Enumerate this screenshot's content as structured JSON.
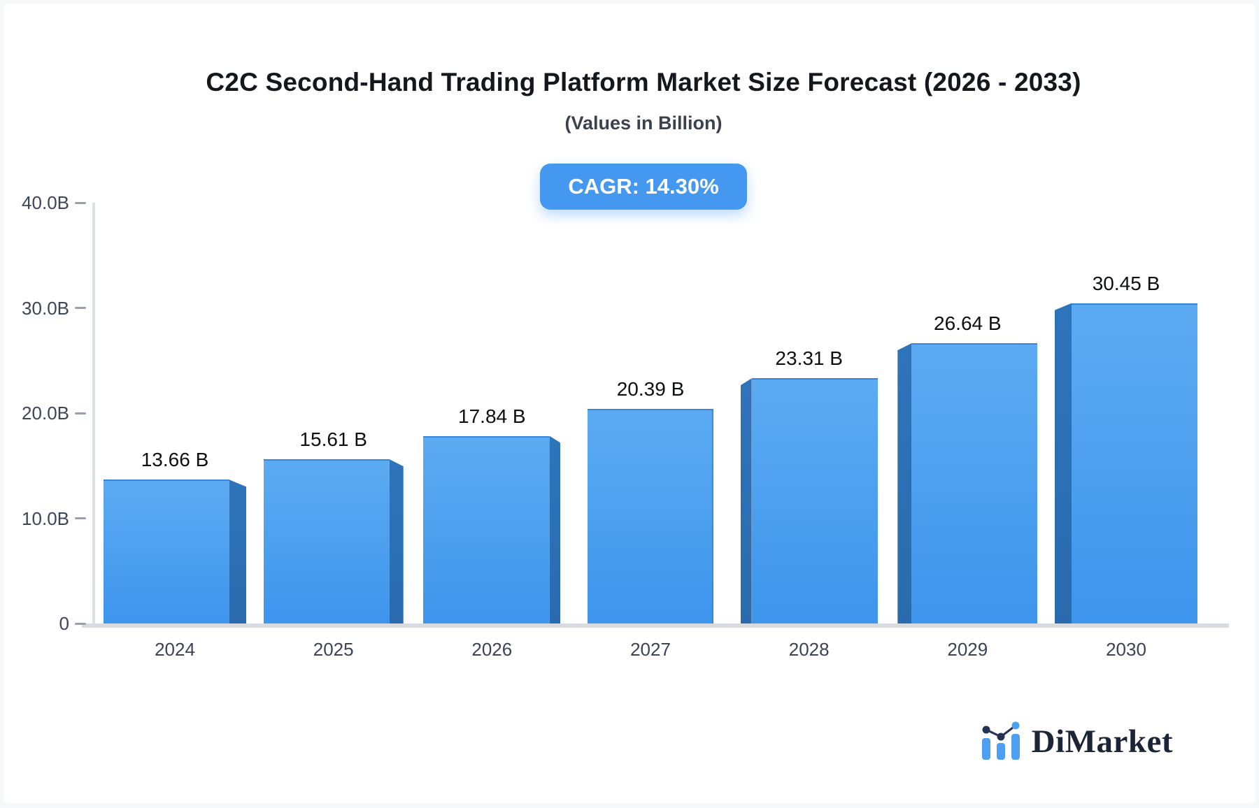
{
  "page": {
    "background": "#f7f8fa",
    "card_background": "#ffffff"
  },
  "header": {
    "title": "C2C Second-Hand Trading Platform Market Size Forecast (2026 - 2033)",
    "subtitle": "(Values in Billion)",
    "badge": "CAGR: 14.30%",
    "badge_color": "#4598EF"
  },
  "chart_data": {
    "type": "bar",
    "title": "C2C Second-Hand Trading Platform Market Size Forecast (2026 - 2033)",
    "subtitle": "(Values in Billion)",
    "annotation": "CAGR: 14.30%",
    "categories": [
      "2024",
      "2025",
      "2026",
      "2027",
      "2028",
      "2029",
      "2030"
    ],
    "values": [
      13.66,
      15.61,
      17.84,
      20.39,
      23.31,
      26.64,
      30.45
    ],
    "bar_labels": [
      "13.66 B",
      "15.61 B",
      "17.84 B",
      "20.39 B",
      "23.31 B",
      "26.64 B",
      "30.45 B"
    ],
    "xlabel": "",
    "ylabel": "",
    "ylim": [
      0,
      40
    ],
    "yticks": [
      {
        "label": "40.0B",
        "value": 40
      },
      {
        "label": "30.0B",
        "value": 30
      },
      {
        "label": "20.0B",
        "value": 20
      },
      {
        "label": "10.0B",
        "value": 10
      },
      {
        "label": "0",
        "value": 0
      }
    ],
    "grid": false,
    "legend": null,
    "style": "pseudo-3d bars, perspective toward center",
    "colors": {
      "bar_top": "#5CABF2",
      "bar_bottom": "#3E95EC",
      "bar_side": "#2E74BA",
      "bar_side_dark": "#2A6BAE",
      "axis_line": "#dde0e5",
      "baseline": "#d8dbe0",
      "tick_text": "#3c4657"
    }
  },
  "footer": {
    "logo_text": "DiMarket",
    "logo_icon": "bar-chart-with-dots-icon",
    "logo_text_color": "#1c2537",
    "logo_bar_color": "#4D9FF2",
    "logo_dot_dark_color": "#253352",
    "logo_dot_blue_color": "#4D9FF2"
  }
}
